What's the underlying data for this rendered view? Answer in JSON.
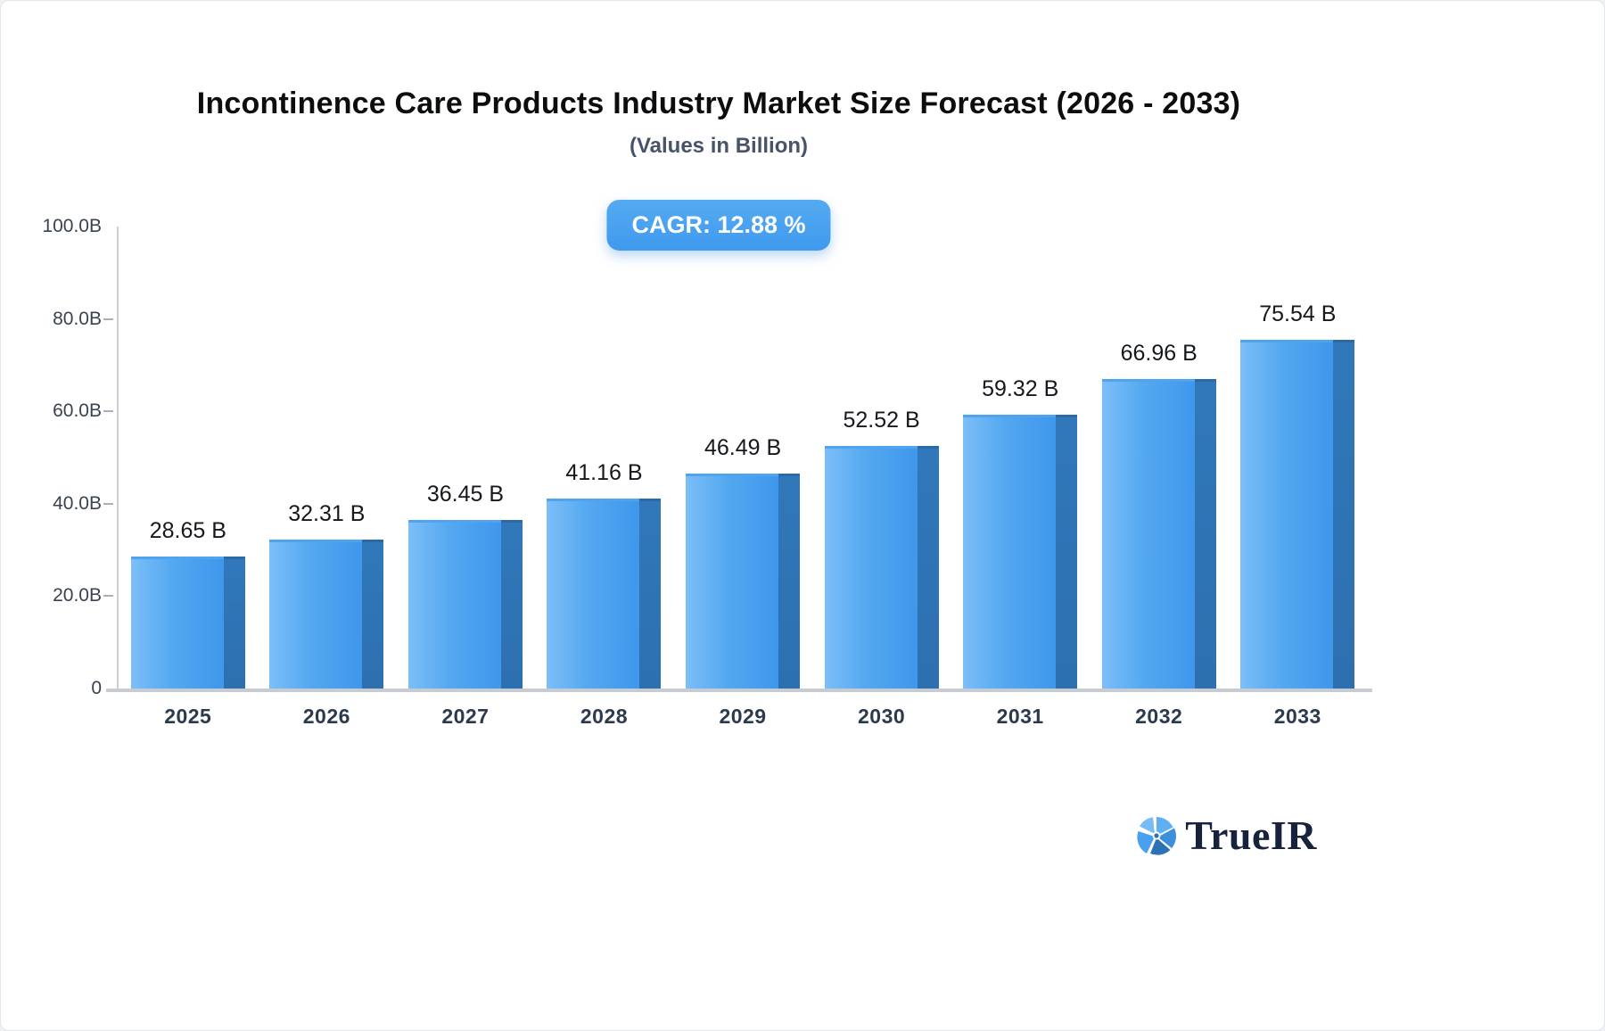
{
  "header": {
    "title": "Incontinence Care Products Industry Market Size Forecast (2026 - 2033)",
    "subtitle": "(Values in Billion)"
  },
  "badge": {
    "label": "CAGR: 12.88 %"
  },
  "logo": {
    "text": "TrueIR",
    "icon": "pie-chart-icon"
  },
  "chart_data": {
    "type": "bar",
    "title": "Incontinence Care Products Industry Market Size Forecast (2026 - 2033)",
    "subtitle": "(Values in Billion)",
    "categories": [
      "2025",
      "2026",
      "2027",
      "2028",
      "2029",
      "2030",
      "2031",
      "2032",
      "2033"
    ],
    "values": [
      28.65,
      32.31,
      36.45,
      41.16,
      46.49,
      52.52,
      59.32,
      66.96,
      75.54
    ],
    "value_labels": [
      "28.65 B",
      "32.31 B",
      "36.45 B",
      "41.16 B",
      "46.49 B",
      "52.52 B",
      "59.32 B",
      "66.96 B",
      "75.54 B"
    ],
    "cagr": "12.88 %",
    "xlabel": "",
    "ylabel": "",
    "ylim": [
      0,
      100
    ],
    "grid": false,
    "legend": "none",
    "yticks": [
      {
        "value": 100,
        "label": "100.0B"
      },
      {
        "value": 80,
        "label": "80.0B"
      },
      {
        "value": 60,
        "label": "60.0B"
      },
      {
        "value": 40,
        "label": "40.0B"
      },
      {
        "value": 20,
        "label": "20.0B"
      },
      {
        "value": 0,
        "label": "0"
      }
    ],
    "colors": {
      "bar_front": "#54a8f0",
      "bar_front_light": "#7cbef8",
      "bar_side": "#2d70b0",
      "badge_bg": "#479fef",
      "axis": "#c7ccd2"
    }
  }
}
